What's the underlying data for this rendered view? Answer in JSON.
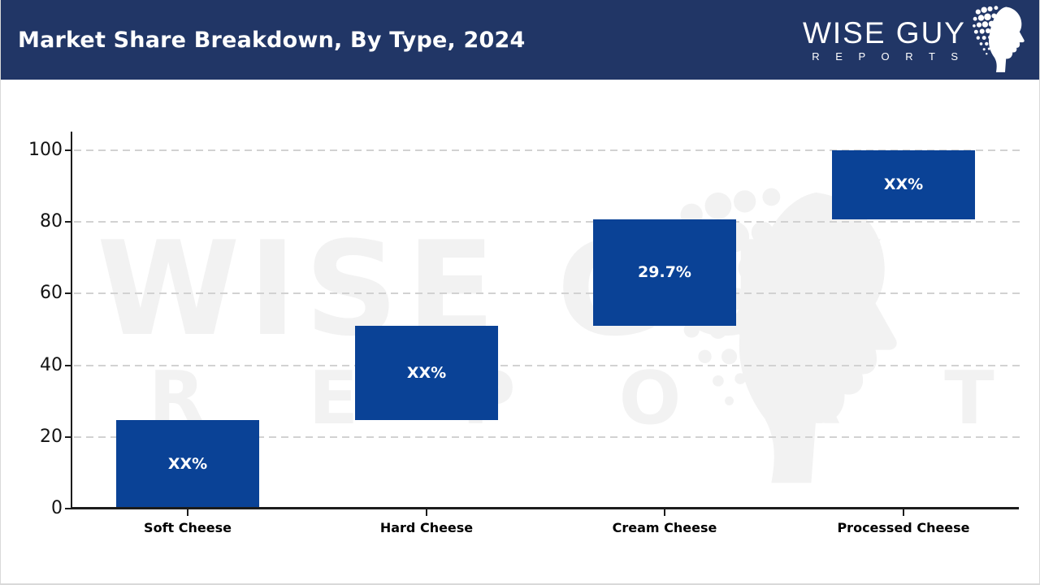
{
  "header": {
    "title": "Market Share Breakdown, By Type, 2024",
    "logo_line1": "WISE GUY",
    "logo_line2": "R E P O R T S"
  },
  "watermark": {
    "line1": "WISE GUY",
    "line2": "R E P O R T S"
  },
  "colors": {
    "header_bg": "#213666",
    "bar": "#0a4296",
    "grid": "#d2d2d2",
    "axis": "#1c1c1c",
    "tick_text": "#141414",
    "watermark": "#f2f2f2",
    "bar_label_text": "#ffffff"
  },
  "chart_data": {
    "type": "bar",
    "subtype": "waterfall-segments",
    "title": "Market Share Breakdown, By Type, 2024",
    "categories": [
      "Soft Cheese",
      "Hard Cheese",
      "Cream Cheese",
      "Processed Cheese"
    ],
    "bars": [
      {
        "category": "Soft Cheese",
        "start": 0,
        "end": 24.7,
        "segment_value": 24.7,
        "value_display": "XX%"
      },
      {
        "category": "Hard Cheese",
        "start": 24.7,
        "end": 51.0,
        "segment_value": 26.3,
        "value_display": "XX%"
      },
      {
        "category": "Cream Cheese",
        "start": 51.0,
        "end": 80.7,
        "segment_value": 29.7,
        "value_display": "29.7%"
      },
      {
        "category": "Processed Cheese",
        "start": 80.7,
        "end": 100.0,
        "segment_value": 19.3,
        "value_display": "XX%"
      }
    ],
    "xlabel": "",
    "ylabel": "",
    "ylim": [
      0,
      100
    ],
    "yticks": [
      0,
      20,
      40,
      60,
      80,
      100
    ],
    "grid": "horizontal dashed",
    "legend": "none"
  }
}
